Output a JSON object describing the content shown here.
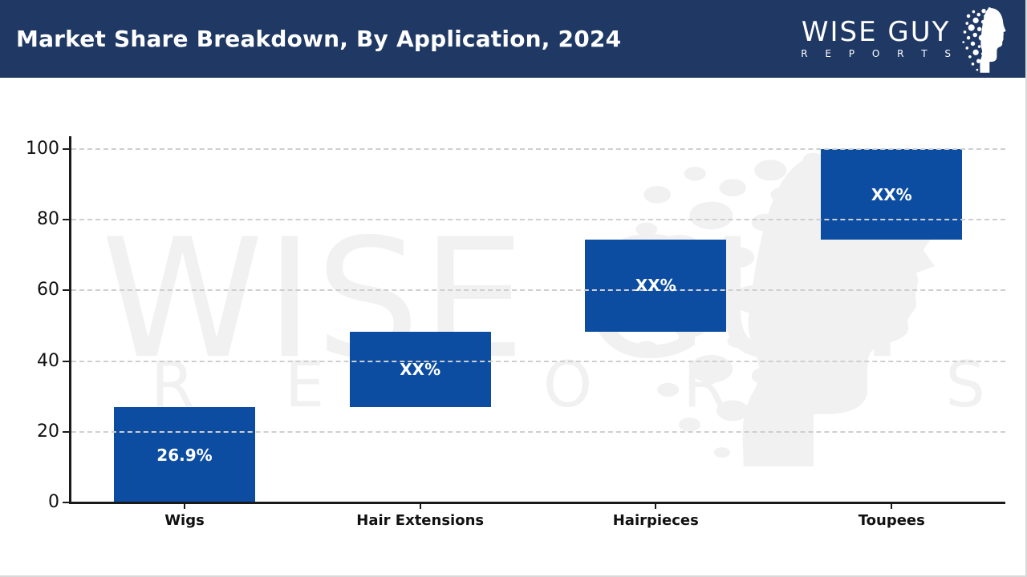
{
  "header": {
    "title": "Market Share Breakdown, By Application, 2024",
    "logo": {
      "line1": "WISE GUY",
      "line2": "R E P O R T S"
    }
  },
  "watermark": {
    "line1": "WISE GUY",
    "line2": "R E P O R T S"
  },
  "chart_data": {
    "type": "bar",
    "subtype": "waterfall",
    "title": "Market Share Breakdown, By Application, 2024",
    "categories": [
      "Wigs",
      "Hair Extensions",
      "Hairpieces",
      "Toupees"
    ],
    "segments": [
      {
        "category": "Wigs",
        "start": 0,
        "end": 26.9,
        "label": "26.9%",
        "estimated_value": 26.9
      },
      {
        "category": "Hair Extensions",
        "start": 26.9,
        "end": 48.4,
        "label": "XX%",
        "estimated_value": 21.5
      },
      {
        "category": "Hairpieces",
        "start": 48.4,
        "end": 74.3,
        "label": "XX%",
        "estimated_value": 25.9
      },
      {
        "category": "Toupees",
        "start": 74.3,
        "end": 100,
        "label": "XX%",
        "estimated_value": 25.7
      }
    ],
    "xlabel": "",
    "ylabel": "",
    "ylim": [
      0,
      100
    ],
    "yticks": [
      0,
      20,
      40,
      60,
      80,
      100
    ],
    "grid": "horizontal-dashed-above-bars",
    "legend": "none",
    "colors": {
      "bar": "#0C4DA2",
      "bar_label": "#FFFFFF",
      "grid": "#CFCFCF",
      "axis": "#1A1A1A",
      "header_bg": "#1F3864",
      "watermark": "#F1F1F1"
    }
  }
}
